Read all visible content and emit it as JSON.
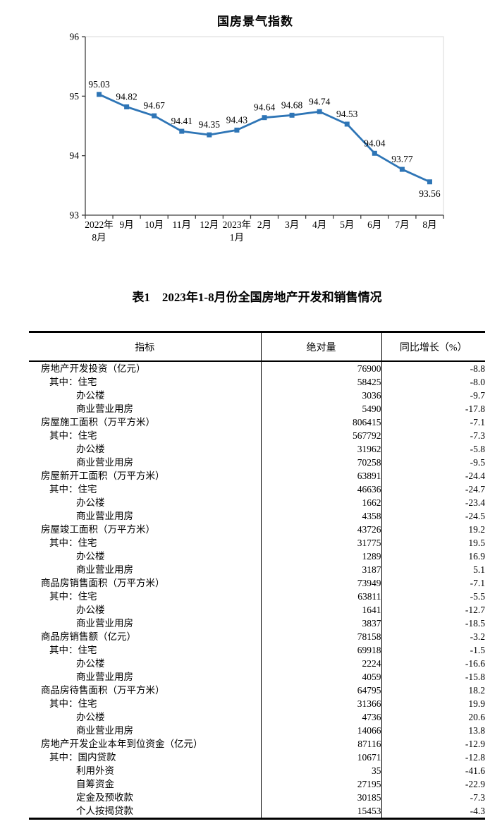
{
  "chart_data": {
    "type": "line",
    "title": "国房景气指数",
    "categories": [
      [
        "2022年",
        "8月"
      ],
      [
        "9月"
      ],
      [
        "10月"
      ],
      [
        "11月"
      ],
      [
        "12月"
      ],
      [
        "2023年",
        "1月"
      ],
      [
        "2月"
      ],
      [
        "3月"
      ],
      [
        "4月"
      ],
      [
        "5月"
      ],
      [
        "6月"
      ],
      [
        "7月"
      ],
      [
        "8月"
      ]
    ],
    "values": [
      95.03,
      94.82,
      94.67,
      94.41,
      94.35,
      94.43,
      94.64,
      94.68,
      94.74,
      94.53,
      94.04,
      93.77,
      93.56
    ],
    "data_labels": [
      "95.03",
      "94.82",
      "94.67",
      "94.41",
      "94.35",
      "94.43",
      "94.64",
      "94.68",
      "94.74",
      "94.53",
      "94.04",
      "93.77",
      "93.56"
    ],
    "xlabel": "",
    "ylabel": "",
    "ylim": [
      93,
      96
    ],
    "yticks": [
      93,
      94,
      95,
      96
    ],
    "grid": false,
    "legend_position": "none",
    "marker": "square",
    "line_color": "#2E75B6",
    "axis_color": "#404040",
    "border_color": "#D9D9D9",
    "label_color": "#000000"
  },
  "table": {
    "title": "表1　2023年1-8月份全国房地产开发和销售情况",
    "columns": [
      "指标",
      "绝对量",
      "同比增长（%）"
    ],
    "rows": [
      {
        "label": "房地产开发投资（亿元）",
        "indent": 0,
        "abs": "76900",
        "yoy": "-8.8"
      },
      {
        "label": "其中：住宅",
        "indent": 1,
        "abs": "58425",
        "yoy": "-8.0"
      },
      {
        "label": "办公楼",
        "indent": 2,
        "abs": "3036",
        "yoy": "-9.7"
      },
      {
        "label": "商业营业用房",
        "indent": 2,
        "abs": "5490",
        "yoy": "-17.8"
      },
      {
        "label": "房屋施工面积（万平方米）",
        "indent": 0,
        "abs": "806415",
        "yoy": "-7.1"
      },
      {
        "label": "其中：住宅",
        "indent": 1,
        "abs": "567792",
        "yoy": "-7.3"
      },
      {
        "label": "办公楼",
        "indent": 2,
        "abs": "31962",
        "yoy": "-5.8"
      },
      {
        "label": "商业营业用房",
        "indent": 2,
        "abs": "70258",
        "yoy": "-9.5"
      },
      {
        "label": "房屋新开工面积（万平方米）",
        "indent": 0,
        "abs": "63891",
        "yoy": "-24.4"
      },
      {
        "label": "其中：住宅",
        "indent": 1,
        "abs": "46636",
        "yoy": "-24.7"
      },
      {
        "label": "办公楼",
        "indent": 2,
        "abs": "1662",
        "yoy": "-23.4"
      },
      {
        "label": "商业营业用房",
        "indent": 2,
        "abs": "4358",
        "yoy": "-24.5"
      },
      {
        "label": "房屋竣工面积（万平方米）",
        "indent": 0,
        "abs": "43726",
        "yoy": "19.2"
      },
      {
        "label": "其中：住宅",
        "indent": 1,
        "abs": "31775",
        "yoy": "19.5"
      },
      {
        "label": "办公楼",
        "indent": 2,
        "abs": "1289",
        "yoy": "16.9"
      },
      {
        "label": "商业营业用房",
        "indent": 2,
        "abs": "3187",
        "yoy": "5.1"
      },
      {
        "label": "商品房销售面积（万平方米）",
        "indent": 0,
        "abs": "73949",
        "yoy": "-7.1"
      },
      {
        "label": "其中：住宅",
        "indent": 1,
        "abs": "63811",
        "yoy": "-5.5"
      },
      {
        "label": "办公楼",
        "indent": 2,
        "abs": "1641",
        "yoy": "-12.7"
      },
      {
        "label": "商业营业用房",
        "indent": 2,
        "abs": "3837",
        "yoy": "-18.5"
      },
      {
        "label": "商品房销售额（亿元）",
        "indent": 0,
        "abs": "78158",
        "yoy": "-3.2"
      },
      {
        "label": "其中：住宅",
        "indent": 1,
        "abs": "69918",
        "yoy": "-1.5"
      },
      {
        "label": "办公楼",
        "indent": 2,
        "abs": "2224",
        "yoy": "-16.6"
      },
      {
        "label": "商业营业用房",
        "indent": 2,
        "abs": "4059",
        "yoy": "-15.8"
      },
      {
        "label": "商品房待售面积（万平方米）",
        "indent": 0,
        "abs": "64795",
        "yoy": "18.2"
      },
      {
        "label": "其中：住宅",
        "indent": 1,
        "abs": "31366",
        "yoy": "19.9"
      },
      {
        "label": "办公楼",
        "indent": 2,
        "abs": "4736",
        "yoy": "20.6"
      },
      {
        "label": "商业营业用房",
        "indent": 2,
        "abs": "14066",
        "yoy": "13.8"
      },
      {
        "label": "房地产开发企业本年到位资金（亿元）",
        "indent": 0,
        "abs": "87116",
        "yoy": "-12.9"
      },
      {
        "label": "其中：国内贷款",
        "indent": 1,
        "abs": "10671",
        "yoy": "-12.8"
      },
      {
        "label": "利用外资",
        "indent": 2,
        "abs": "35",
        "yoy": "-41.6"
      },
      {
        "label": "自筹资金",
        "indent": 2,
        "abs": "27195",
        "yoy": "-22.9"
      },
      {
        "label": "定金及预收款",
        "indent": 2,
        "abs": "30185",
        "yoy": "-7.3"
      },
      {
        "label": "个人按揭贷款",
        "indent": 2,
        "abs": "15453",
        "yoy": "-4.3"
      }
    ]
  }
}
